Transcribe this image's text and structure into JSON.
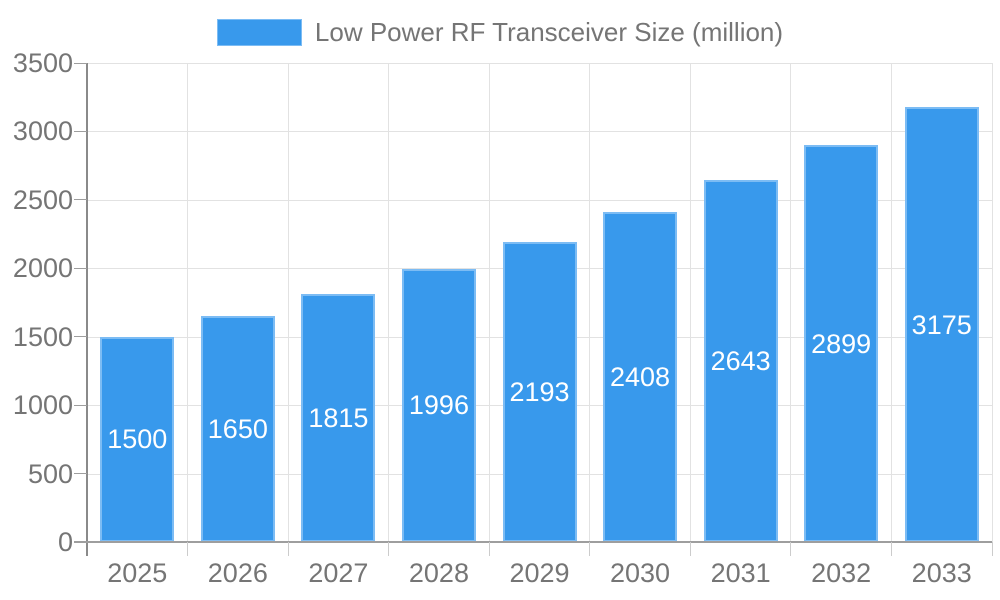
{
  "legend": {
    "label": "Low Power RF Transceiver Size (million)"
  },
  "chart_data": {
    "type": "bar",
    "title": "Low Power RF Transceiver Size (million)",
    "categories": [
      "2025",
      "2026",
      "2027",
      "2028",
      "2029",
      "2030",
      "2031",
      "2032",
      "2033"
    ],
    "values": [
      1500,
      1650,
      1815,
      1996,
      2193,
      2408,
      2643,
      2899,
      3175
    ],
    "xlabel": "",
    "ylabel": "",
    "ylim": [
      0,
      3500
    ],
    "yticks": [
      0,
      500,
      1000,
      1500,
      2000,
      2500,
      3000,
      3500
    ],
    "grid": true,
    "legend_position": "top-center",
    "bar_value_labels": "inside-center"
  },
  "colors": {
    "bar_fill": "#3899EC",
    "bar_border": "#7CBCF4",
    "bar_label_text": "#FFFFFF",
    "axis_text": "#757575",
    "legend_text": "#757575",
    "gridline": "#E2E2E2",
    "y_axis_line": "#8A8A8A",
    "x_axis_line": "#9E9E9E",
    "x_tick": "#CCCCCC",
    "y_tick": "#9E9E9E",
    "background": "#FFFFFF"
  }
}
